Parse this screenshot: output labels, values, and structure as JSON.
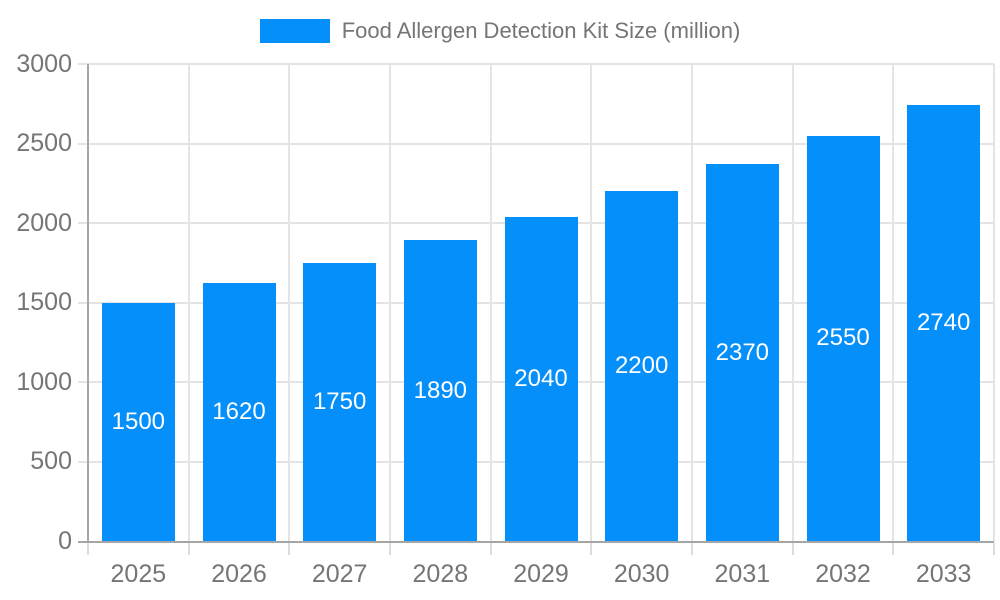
{
  "legend": {
    "label": "Food Allergen Detection Kit Size (million)"
  },
  "chart_data": {
    "type": "bar",
    "title": "Food Allergen Detection Kit Size (million)",
    "categories": [
      "2025",
      "2026",
      "2027",
      "2028",
      "2029",
      "2030",
      "2031",
      "2032",
      "2033"
    ],
    "values": [
      1500,
      1620,
      1750,
      1890,
      2040,
      2200,
      2370,
      2550,
      2740
    ],
    "series": [
      {
        "name": "Food Allergen Detection Kit Size (million)",
        "values": [
          1500,
          1620,
          1750,
          1890,
          2040,
          2200,
          2370,
          2550,
          2740
        ]
      }
    ],
    "xlabel": "",
    "ylabel": "",
    "ylim": [
      0,
      3000
    ],
    "yticks": [
      0,
      500,
      1000,
      1500,
      2000,
      2500,
      3000
    ],
    "grid": true,
    "legend_position": "top",
    "value_labels_inside_bars": true
  },
  "colors": {
    "bar": "#058FFA",
    "grid": "#E4E4E4",
    "axis": "#A6A6A6",
    "tick": "#DCDCDC",
    "text": "#757575",
    "value_text": "#FFFFFF"
  }
}
